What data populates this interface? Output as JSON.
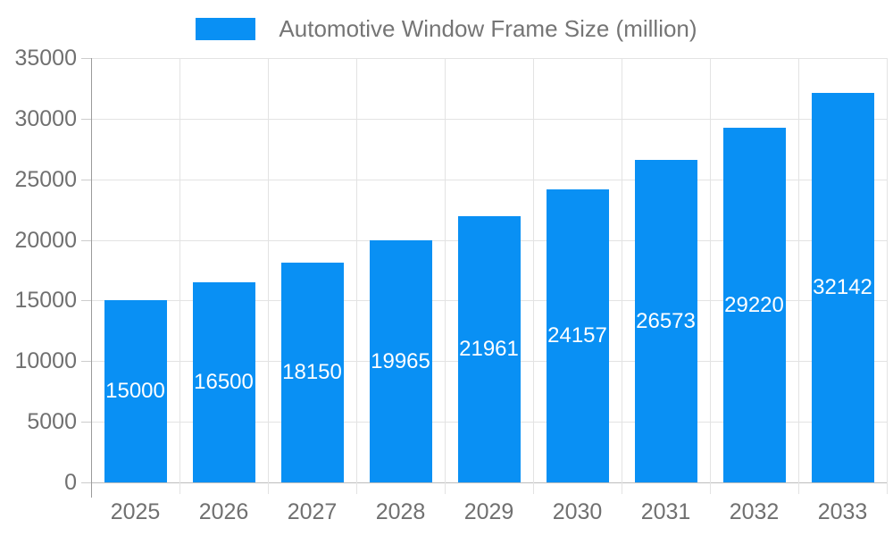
{
  "legend": {
    "swatch_color": "#0990f4",
    "label": "Automotive Window Frame Size (million)"
  },
  "chart_data": {
    "type": "bar",
    "title": "Automotive Window Frame Size (million)",
    "series_name": "Automotive Window Frame Size (million)",
    "categories": [
      "2025",
      "2026",
      "2027",
      "2028",
      "2029",
      "2030",
      "2031",
      "2032",
      "2033"
    ],
    "values": [
      15000,
      16500,
      18150,
      19965,
      21961,
      24157,
      26573,
      29220,
      32142
    ],
    "xlabel": "",
    "ylabel": "",
    "ylim": [
      0,
      35000
    ],
    "yticks": [
      0,
      5000,
      10000,
      15000,
      20000,
      25000,
      30000,
      35000
    ],
    "grid": true,
    "legend_position": "top-center",
    "bar_color": "#0990f4",
    "value_label_color": "#ffffff",
    "axis_text_color": "#707070",
    "gridline_color": "#e3e3e3"
  }
}
